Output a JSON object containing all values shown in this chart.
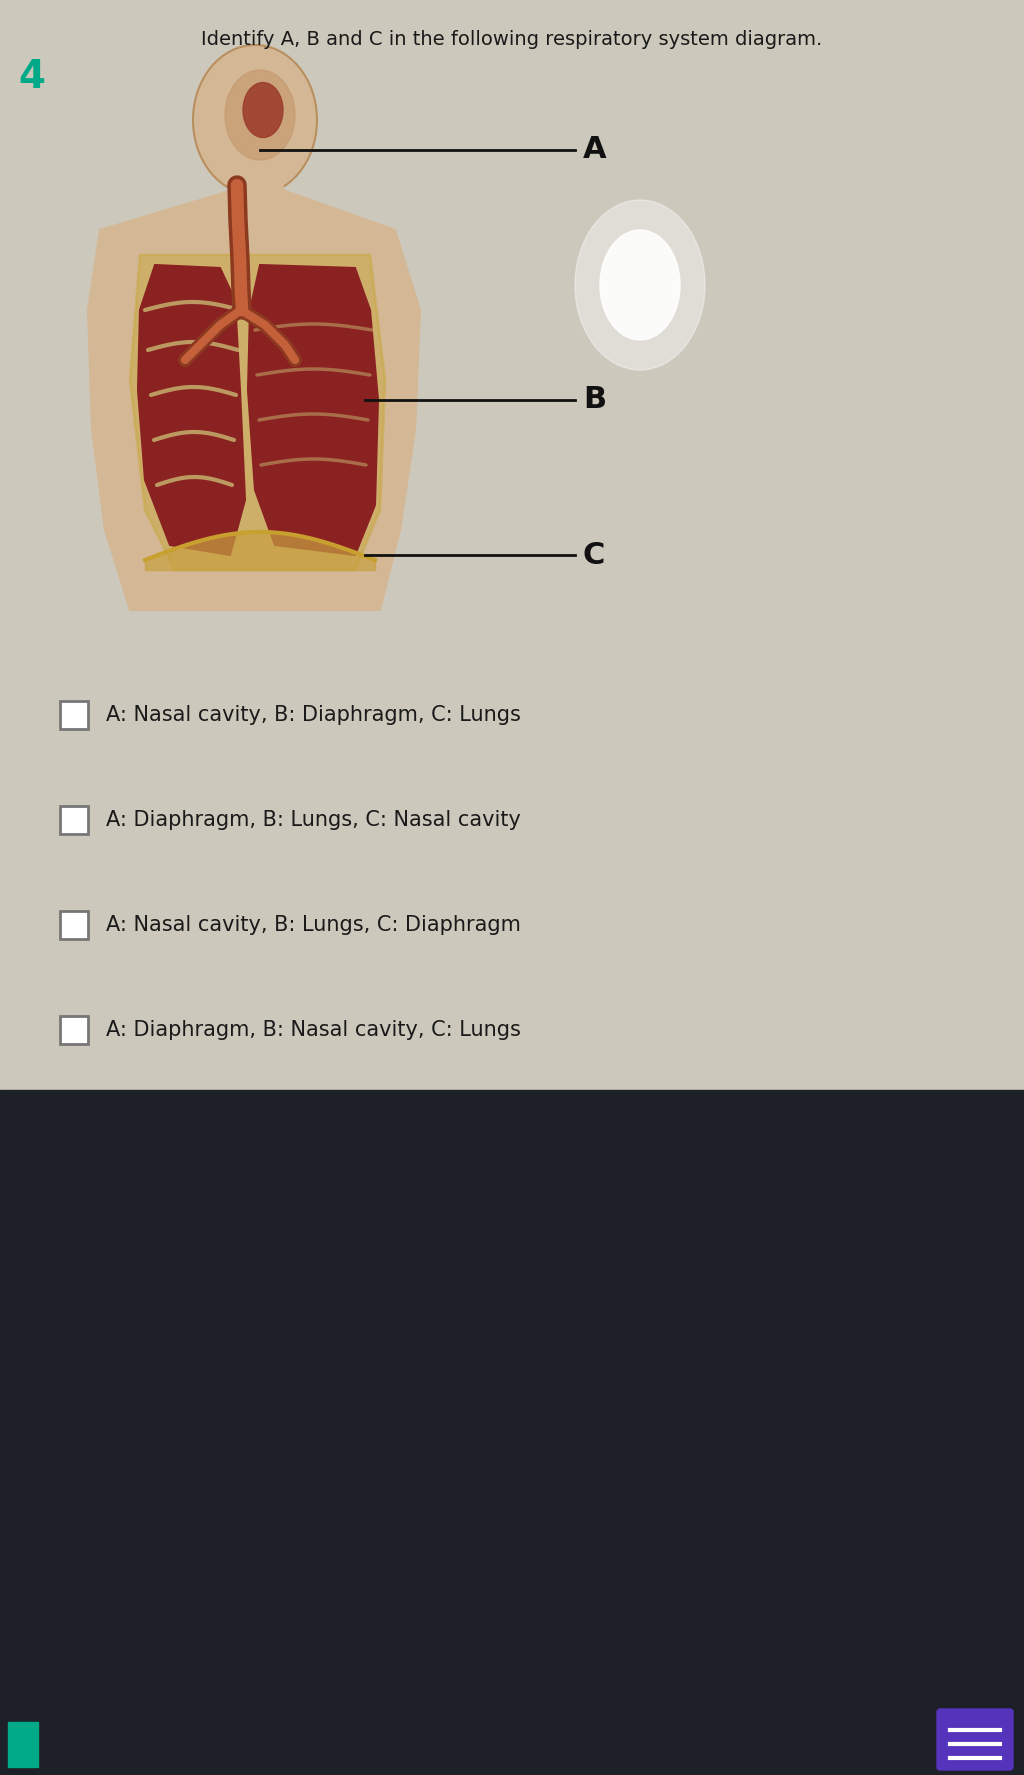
{
  "title": "Identify A, B and C in the following respiratory system diagram.",
  "question_number": "4",
  "title_fontsize": 14,
  "title_color": "#1a1a1a",
  "bg_color_light": "#ccc8bc",
  "bg_color_options": "#c8c4b8",
  "bg_color_dark": "#1e2028",
  "options": [
    "A: Nasal cavity, B: Diaphragm, C: Lungs",
    "A: Diaphragm, B: Lungs, C: Nasal cavity",
    "A: Nasal cavity, B: Lungs, C: Diaphragm",
    "A: Diaphragm, B: Nasal cavity, C: Lungs"
  ],
  "option_fontsize": 15,
  "option_color": "#1a1a1a",
  "label_fontsize": 22,
  "label_color": "#111111",
  "line_color": "#111111",
  "checkbox_color": "#777777",
  "skin_color": "#d4b896",
  "skin_outline": "#b89060",
  "lung_color": "#8b2222",
  "lung_outline": "#5a1010",
  "trachea_color": "#c4603a",
  "trachea_outline": "#8b3a20",
  "diaphragm_color": "#c8a030",
  "rib_color": "#c8b870",
  "nasal_color": "#9b3a2a",
  "bright_spot_color": "#ffffff",
  "split_light_dark": 0.385,
  "split_diagram_options": 0.625,
  "fig_w": 10.24,
  "fig_h": 17.75
}
